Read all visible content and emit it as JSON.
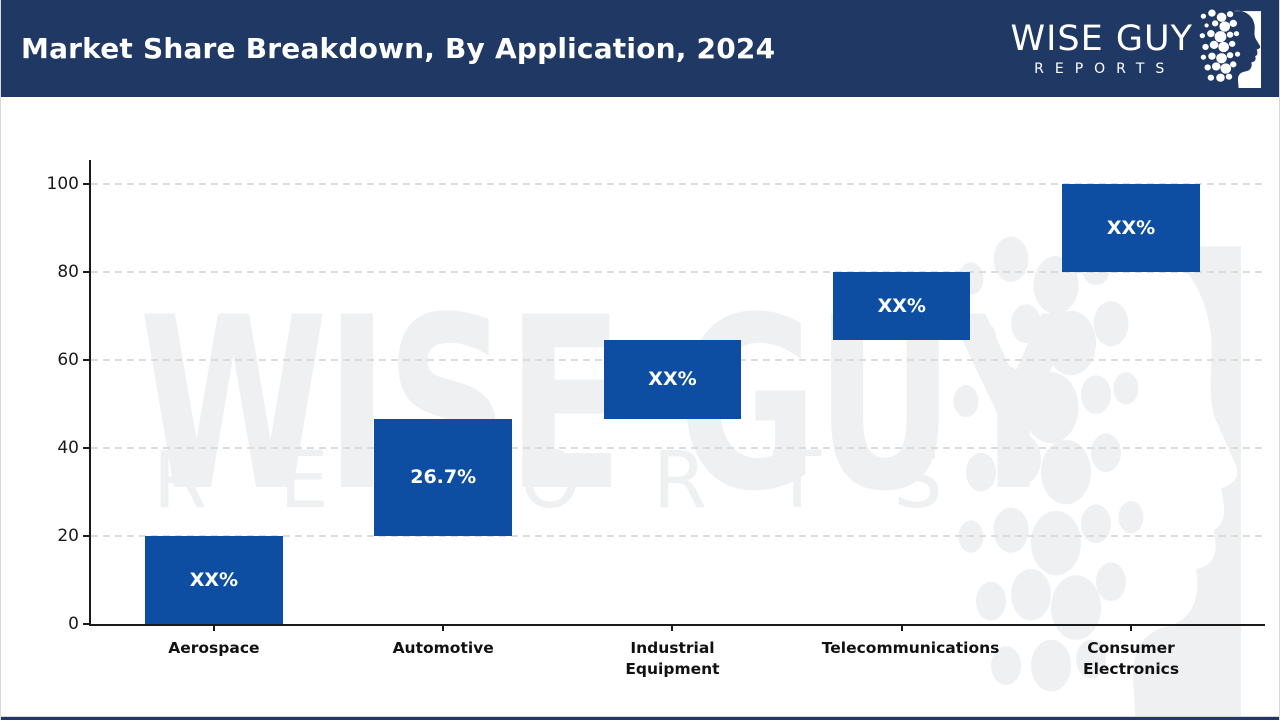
{
  "header": {
    "title": "Market Share Breakdown, By Application, 2024",
    "logo": {
      "line1": "WISE GUY",
      "line2": "REPORTS"
    }
  },
  "watermark": {
    "line1": "WISE GUY",
    "line2": "REPORTS"
  },
  "colors": {
    "header_bg": "#1f3864",
    "bar": "#0d4ea2",
    "bar_label": "#ffffff",
    "axis": "#1a1a1a",
    "grid": "#dcdcdc",
    "watermark": "#eef0f2"
  },
  "chart_data": {
    "type": "bar",
    "subtype": "waterfall",
    "title": "Market Share Breakdown, By Application, 2024",
    "xlabel": "",
    "ylabel": "",
    "ylim": [
      0,
      105.5
    ],
    "yticks": [
      0,
      20,
      40,
      60,
      80,
      100
    ],
    "grid": "horizontal-dashed",
    "legend": "none",
    "categories": [
      "Aerospace",
      "Automotive",
      "Industrial Equipment",
      "Telecommunications",
      "Consumer Electronics"
    ],
    "segments": [
      {
        "category": "Aerospace",
        "start": 0,
        "end": 20,
        "label": "XX%"
      },
      {
        "category": "Automotive",
        "start": 20,
        "end": 46.7,
        "label": "26.7%"
      },
      {
        "category": "Industrial Equipment",
        "start": 46.7,
        "end": 64.5,
        "label": "XX%"
      },
      {
        "category": "Telecommunications",
        "start": 64.5,
        "end": 80,
        "label": "XX%"
      },
      {
        "category": "Consumer Electronics",
        "start": 80,
        "end": 100,
        "label": "XX%"
      }
    ]
  }
}
